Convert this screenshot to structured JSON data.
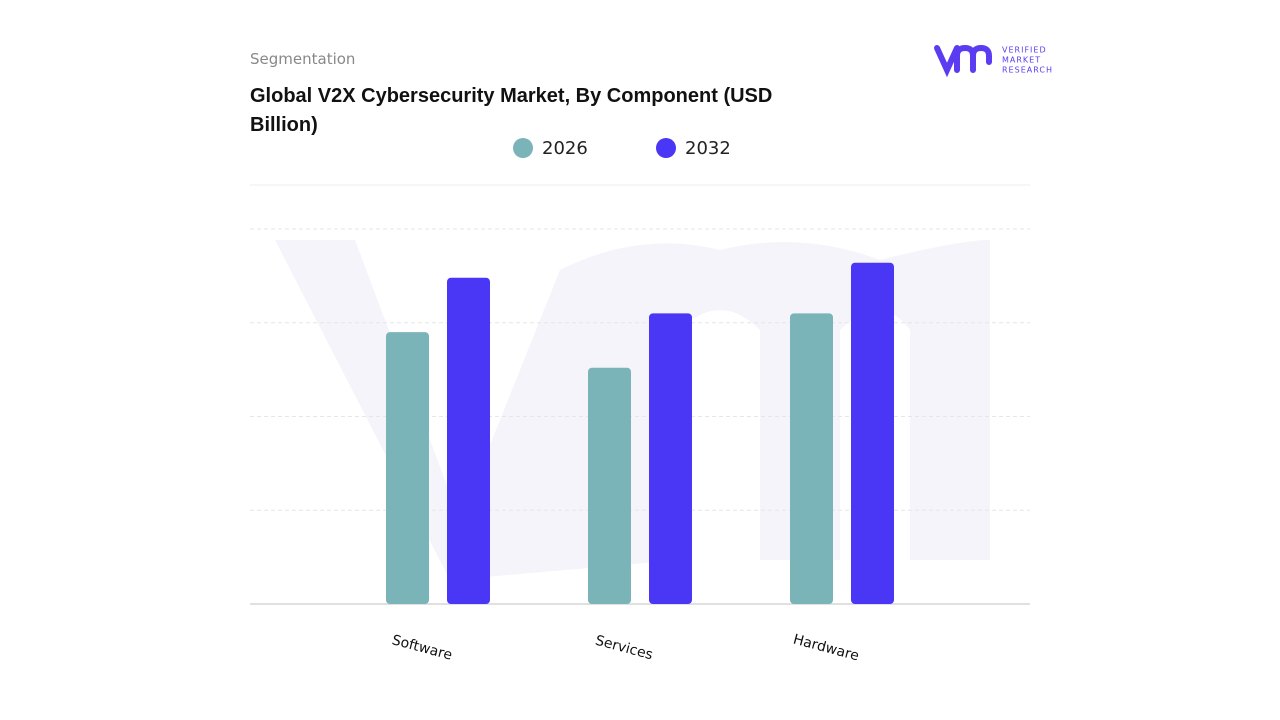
{
  "chart_data": {
    "type": "bar",
    "subtitle": "Segmentation",
    "title": "Global V2X Cybersecurity Market, By Component (USD Billion)",
    "brand": [
      "VERIFIED",
      "MARKET",
      "RESEARCH"
    ],
    "categories": [
      "Software",
      "Services",
      "Hardware"
    ],
    "series": [
      {
        "name": "2026",
        "color": "#7ab3b8",
        "values": [
          2.9,
          2.52,
          3.1
        ]
      },
      {
        "name": "2032",
        "color": "#4a36f5",
        "values": [
          3.48,
          3.1,
          3.64
        ]
      }
    ],
    "ylim": [
      0,
      4
    ],
    "grid": true
  }
}
